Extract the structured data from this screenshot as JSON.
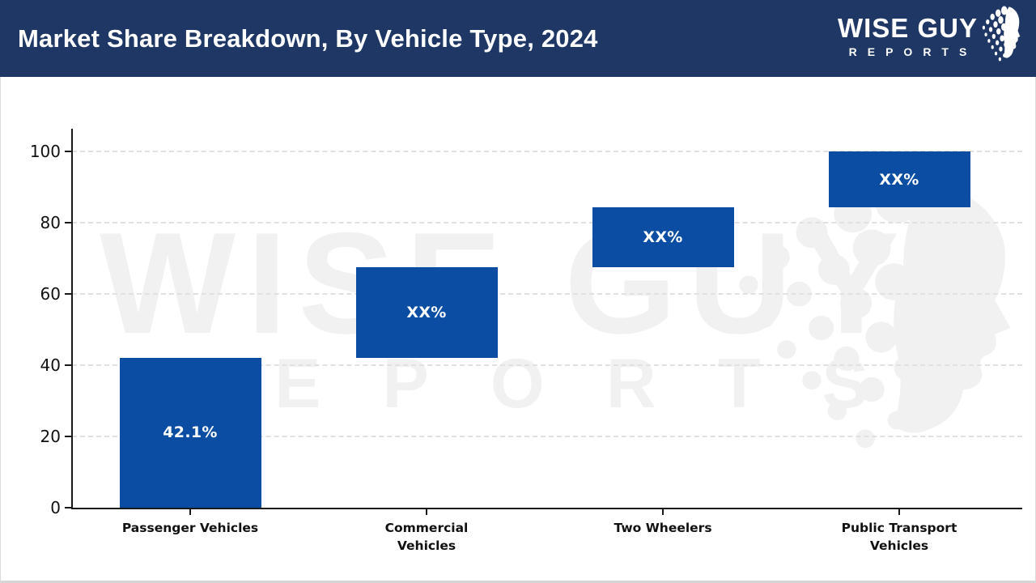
{
  "header": {
    "title": "Market Share Breakdown, By Vehicle Type, 2024",
    "bg_color": "#1e3764",
    "logo": {
      "line1": "WISE GUY",
      "line2": "REPORTS"
    }
  },
  "watermark": {
    "line1": "WISE GUY",
    "line2": "REPORTS"
  },
  "chart_data": {
    "type": "bar",
    "subtype": "waterfall",
    "title": "Market Share Breakdown, By Vehicle Type, 2024",
    "categories": [
      "Passenger Vehicles",
      "Commercial\nVehicles",
      "Two Wheelers",
      "Public Transport\nVehicles"
    ],
    "segments": [
      {
        "category": "Passenger Vehicles",
        "start": 0,
        "end": 42.1,
        "label": "42.1%"
      },
      {
        "category": "Commercial Vehicles",
        "start": 42.1,
        "end": 67.4,
        "label": "XX%"
      },
      {
        "category": "Two Wheelers",
        "start": 67.4,
        "end": 84.3,
        "label": "XX%"
      },
      {
        "category": "Public Transport Vehicles",
        "start": 84.3,
        "end": 100,
        "label": "XX%"
      }
    ],
    "ylim": [
      0,
      100
    ],
    "yticks": [
      0,
      20,
      40,
      60,
      80,
      100
    ],
    "xlabel": "",
    "ylabel": "",
    "legend": "none",
    "grid": "horizontal-dashed",
    "bar_color": "#0b4da2",
    "bar_label_color": "#ffffff"
  }
}
